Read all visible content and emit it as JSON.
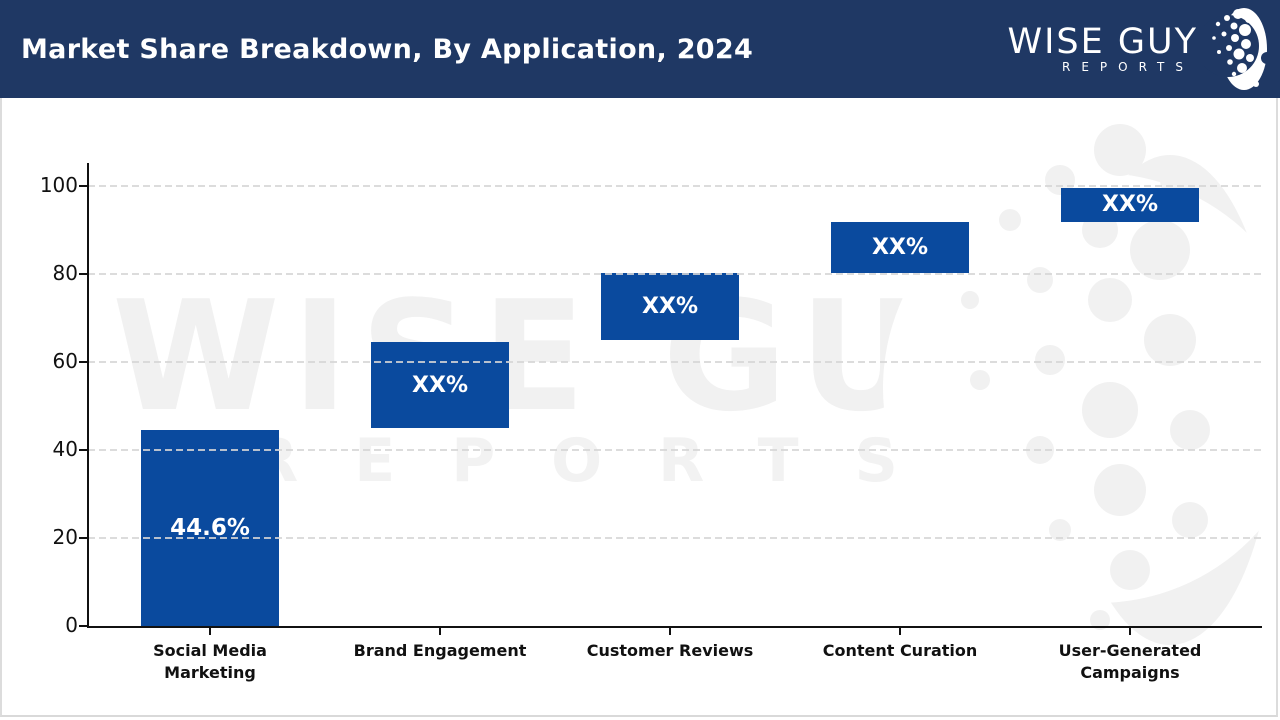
{
  "header": {
    "title": "Market Share Breakdown, By Application, 2024",
    "logo": {
      "brand": "WISE GUY",
      "sub": "REPORTS"
    }
  },
  "watermark": {
    "brand": "WISE GUY",
    "sub": "REPORTS"
  },
  "chart_data": {
    "type": "bar",
    "subtype": "waterfall",
    "title": "Market Share Breakdown, By Application, 2024",
    "categories": [
      "Social Media Marketing",
      "Brand Engagement",
      "Customer Reviews",
      "Content Curation",
      "User-Generated Campaigns"
    ],
    "category_lines": [
      [
        "Social Media",
        "Marketing"
      ],
      [
        "Brand Engagement"
      ],
      [
        "Customer Reviews"
      ],
      [
        "Content Curation"
      ],
      [
        "User-Generated",
        "Campaigns"
      ]
    ],
    "segments": [
      {
        "category": "Social Media Marketing",
        "start": 0,
        "end": 44.6,
        "label": "44.6%"
      },
      {
        "category": "Brand Engagement",
        "start": 44.9,
        "end": 64.5,
        "label": "XX%"
      },
      {
        "category": "Customer Reviews",
        "start": 64.9,
        "end": 80.3,
        "label": "XX%"
      },
      {
        "category": "Content Curation",
        "start": 80.3,
        "end": 91.8,
        "label": "XX%"
      },
      {
        "category": "User-Generated Campaigns",
        "start": 91.8,
        "end": 99.6,
        "label": "XX%"
      }
    ],
    "yticks": [
      0,
      20,
      40,
      60,
      80,
      100
    ],
    "ylim": [
      0,
      105
    ],
    "xlabel": "",
    "ylabel": "",
    "grid": "horizontal-dashed",
    "legend": null,
    "colors": {
      "bar": "#0a4a9e",
      "bar_label": "#ffffff",
      "grid": "#d6d6d6",
      "axis": "#111111",
      "header_bg": "#1f3864",
      "watermark": "#f1f1f1"
    }
  }
}
